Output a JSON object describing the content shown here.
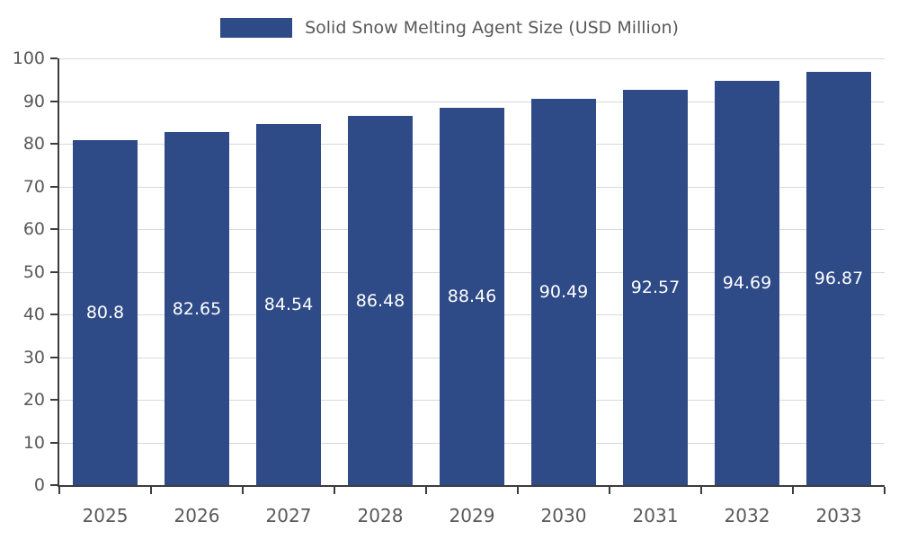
{
  "chart_data": {
    "type": "bar",
    "title": "Solid Snow Melting Agent Size (USD Million)",
    "categories": [
      "2025",
      "2026",
      "2027",
      "2028",
      "2029",
      "2030",
      "2031",
      "2032",
      "2033"
    ],
    "values": [
      80.8,
      82.65,
      84.54,
      86.48,
      88.46,
      90.49,
      92.57,
      94.69,
      96.87
    ],
    "data_labels": [
      "80.8",
      "82.65",
      "84.54",
      "86.48",
      "88.46",
      "90.49",
      "92.57",
      "94.69",
      "96.87"
    ],
    "xlabel": "",
    "ylabel": "",
    "ylim": [
      0,
      100
    ],
    "y_ticks": [
      0,
      10,
      20,
      30,
      40,
      50,
      60,
      70,
      80,
      90,
      100
    ],
    "grid": true,
    "legend_position": "top-center",
    "colors": {
      "bar": "#2e4a87",
      "label_text": "#ffffff",
      "axis_text": "#595959",
      "grid_line": "#d9d9d9",
      "axis_line": "#3c3c3c",
      "background": "#ffffff"
    }
  }
}
